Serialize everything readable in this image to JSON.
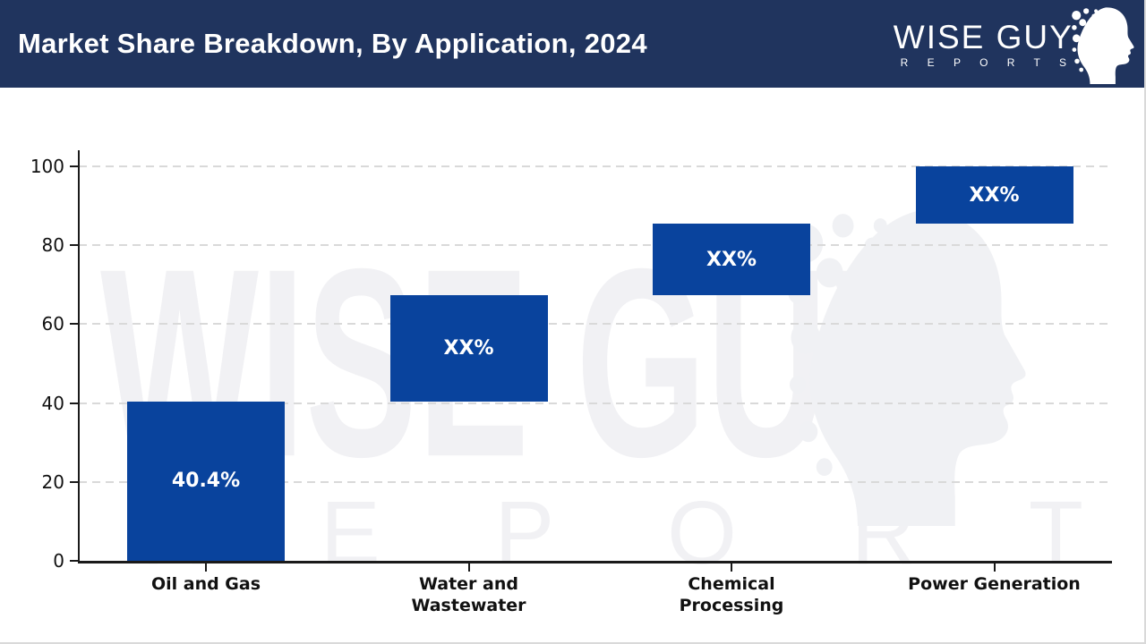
{
  "header": {
    "title": "Market Share Breakdown, By Application, 2024",
    "bg_color": "#20345e",
    "logo": {
      "line1": "WISE GUY",
      "line2": "R E P O R T S"
    }
  },
  "watermark": {
    "line1": "WISE GUY",
    "line2": "R E P O R T S"
  },
  "chart_data": {
    "type": "bar",
    "subtype": "waterfall",
    "title": "Market Share Breakdown, By Application, 2024",
    "xlabel": "",
    "ylabel": "",
    "ylim": [
      0,
      100
    ],
    "yticks": [
      0,
      20,
      40,
      60,
      80,
      100
    ],
    "grid": "horizontal dashed",
    "legend": "none",
    "bar_color": "#09439d",
    "bar_label_color": "#ffffff",
    "categories": [
      "Oil and Gas",
      "Water and\nWastewater",
      "Chemical\nProcessing",
      "Power Generation"
    ],
    "segments": [
      {
        "label": "40.4%",
        "start": 0,
        "end": 40.4
      },
      {
        "label": "XX%",
        "start": 40.4,
        "end": 67.3
      },
      {
        "label": "XX%",
        "start": 67.3,
        "end": 85.4
      },
      {
        "label": "XX%",
        "start": 85.4,
        "end": 100
      }
    ],
    "increments": [
      40.4,
      26.9,
      18.1,
      14.6
    ],
    "cumulative": [
      40.4,
      67.3,
      85.4,
      100
    ]
  }
}
